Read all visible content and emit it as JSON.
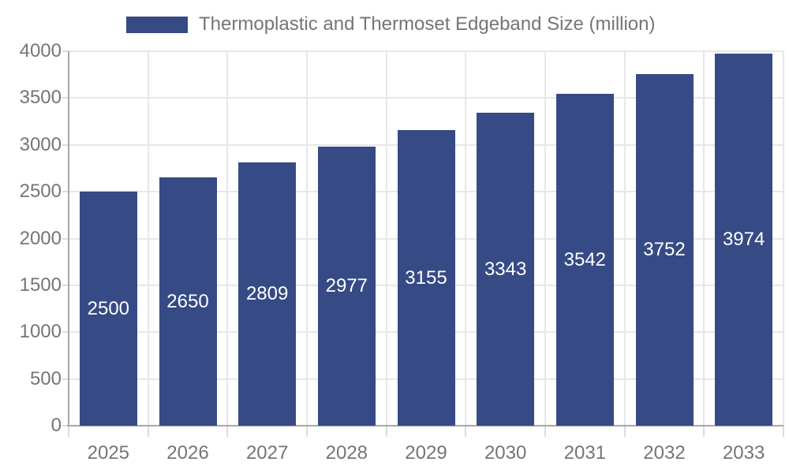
{
  "chart_data": {
    "type": "bar",
    "title": "Thermoplastic and Thermoset Edgeband Size (million)",
    "legend": [
      "Thermoplastic and Thermoset Edgeband Size (million)"
    ],
    "legend_position": "top",
    "categories": [
      "2025",
      "2026",
      "2027",
      "2028",
      "2029",
      "2030",
      "2031",
      "2032",
      "2033"
    ],
    "values": [
      2500,
      2650,
      2809,
      2977,
      3155,
      3343,
      3542,
      3752,
      3974
    ],
    "value_labels_shown": true,
    "xlabel": "",
    "ylabel": "",
    "ylim": [
      0,
      4000
    ],
    "yticks": [
      0,
      500,
      1000,
      1500,
      2000,
      2500,
      3000,
      3500,
      4000
    ],
    "grid": true,
    "colors": {
      "bar": "#364B85",
      "gridline": "#E7E7E7",
      "axis_line": "#A8A8A8",
      "axis_text": "#757575",
      "value_text": "#FFFFFF",
      "background": "#FFFFFF"
    }
  }
}
